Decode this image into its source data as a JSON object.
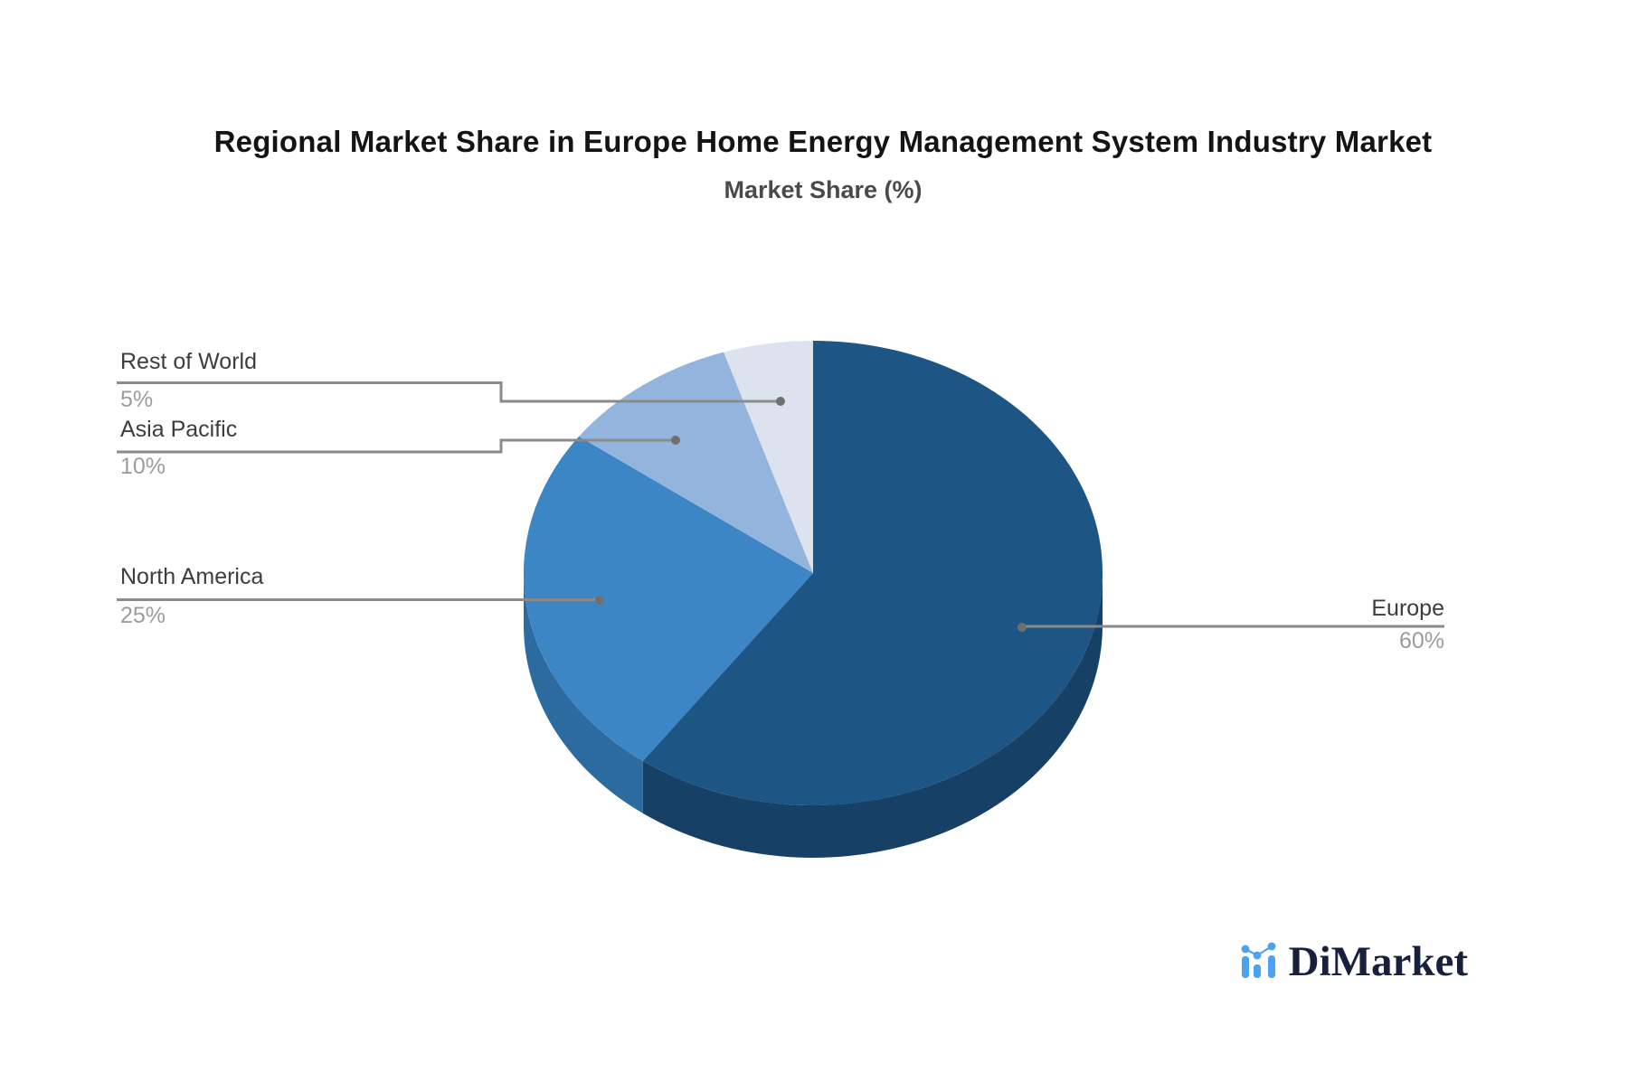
{
  "title": "Regional Market Share in Europe Home Energy Management System Industry Market",
  "subtitle": "Market Share (%)",
  "logo": {
    "text": "DiMarket",
    "icon": "bar-chart-icon",
    "icon_color": "#4aa2f0",
    "text_color": "#17213c"
  },
  "chart_data": {
    "type": "pie",
    "title": "Regional Market Share in Europe Home Energy Management System Industry Market",
    "value_label": "Market Share (%)",
    "unit": "%",
    "effect": "3d",
    "start_angle_deg": 0,
    "direction": "clockwise",
    "legend_position": "callout-labels",
    "categories": [
      "Europe",
      "North America",
      "Asia Pacific",
      "Rest of World"
    ],
    "values": [
      60,
      25,
      10,
      5
    ],
    "slices": [
      {
        "label": "Europe",
        "value": 60,
        "display": "60%",
        "color": "#1d5584",
        "side_color": "#174067"
      },
      {
        "label": "North America",
        "value": 25,
        "display": "25%",
        "color": "#3c86c6",
        "side_color": "#2d6a9f"
      },
      {
        "label": "Asia Pacific",
        "value": 10,
        "display": "10%",
        "color": "#93b5dd",
        "side_color": "#7b9cc2"
      },
      {
        "label": "Rest of World",
        "value": 5,
        "display": "5%",
        "color": "#dde3ee",
        "side_color": "#bcc8da"
      }
    ],
    "leader_line_color": "#8a8a8a",
    "leader_dot_color": "#6f6f6f",
    "label_color": "#3d3d3d",
    "pct_color": "#9c9c9c"
  }
}
